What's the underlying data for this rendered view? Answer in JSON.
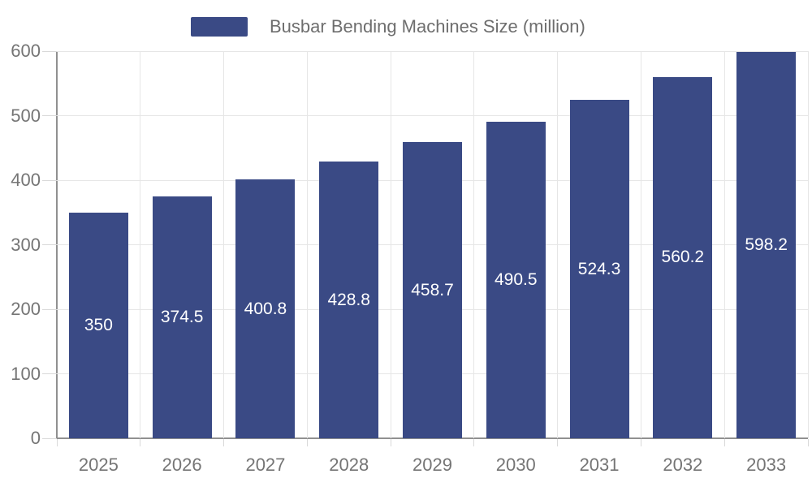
{
  "chart_data": {
    "type": "bar",
    "title": "Busbar Bending Machines Size (million)",
    "series_name": "Busbar Bending Machines Size (million)",
    "categories": [
      "2025",
      "2026",
      "2027",
      "2028",
      "2029",
      "2030",
      "2031",
      "2032",
      "2033"
    ],
    "values": [
      350,
      374.5,
      400.8,
      428.8,
      458.7,
      490.5,
      524.3,
      560.2,
      598.2
    ],
    "xlabel": "",
    "ylabel": "",
    "ylim": [
      0,
      600
    ],
    "yticks": [
      0,
      100,
      200,
      300,
      400,
      500,
      600
    ],
    "grid": true,
    "legend_position": "top",
    "value_label_position": "inside-center",
    "colors": {
      "bar": "#3A4A85",
      "bar_label": "#FFFFFF",
      "axis_label": "#757575",
      "axis_line": "#909090",
      "gridline": "#E6E6E6",
      "tick": "#D9D9D9",
      "legend_text": "#6E6E6E",
      "background": "#FFFFFF"
    }
  }
}
